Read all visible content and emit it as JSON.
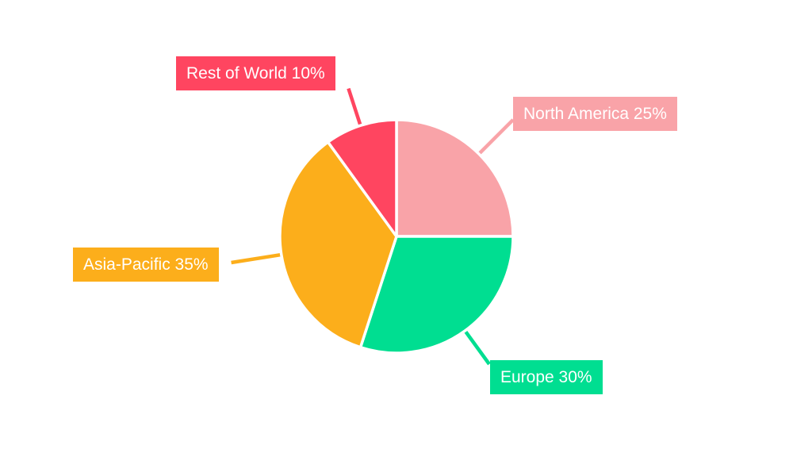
{
  "chart_data": {
    "type": "pie",
    "title": "",
    "categories": [
      "North America",
      "Europe",
      "Asia-Pacific",
      "Rest of World"
    ],
    "values": [
      25,
      30,
      35,
      10
    ],
    "unit": "%",
    "labels": [
      "North America 25%",
      "Europe 30%",
      "Asia-Pacific 35%",
      "Rest of World 10%"
    ],
    "colors": [
      "#F9A3A8",
      "#00DE91",
      "#FCAE1B",
      "#FF4560"
    ],
    "slice_gap_color": "#FFFFFF",
    "label_text_color": "#FFFFFF",
    "background": "#FFFFFF",
    "start_angle_deg": 0,
    "direction": "clockwise",
    "legend": "none",
    "label_style": "external-boxes-with-leader-lines"
  }
}
